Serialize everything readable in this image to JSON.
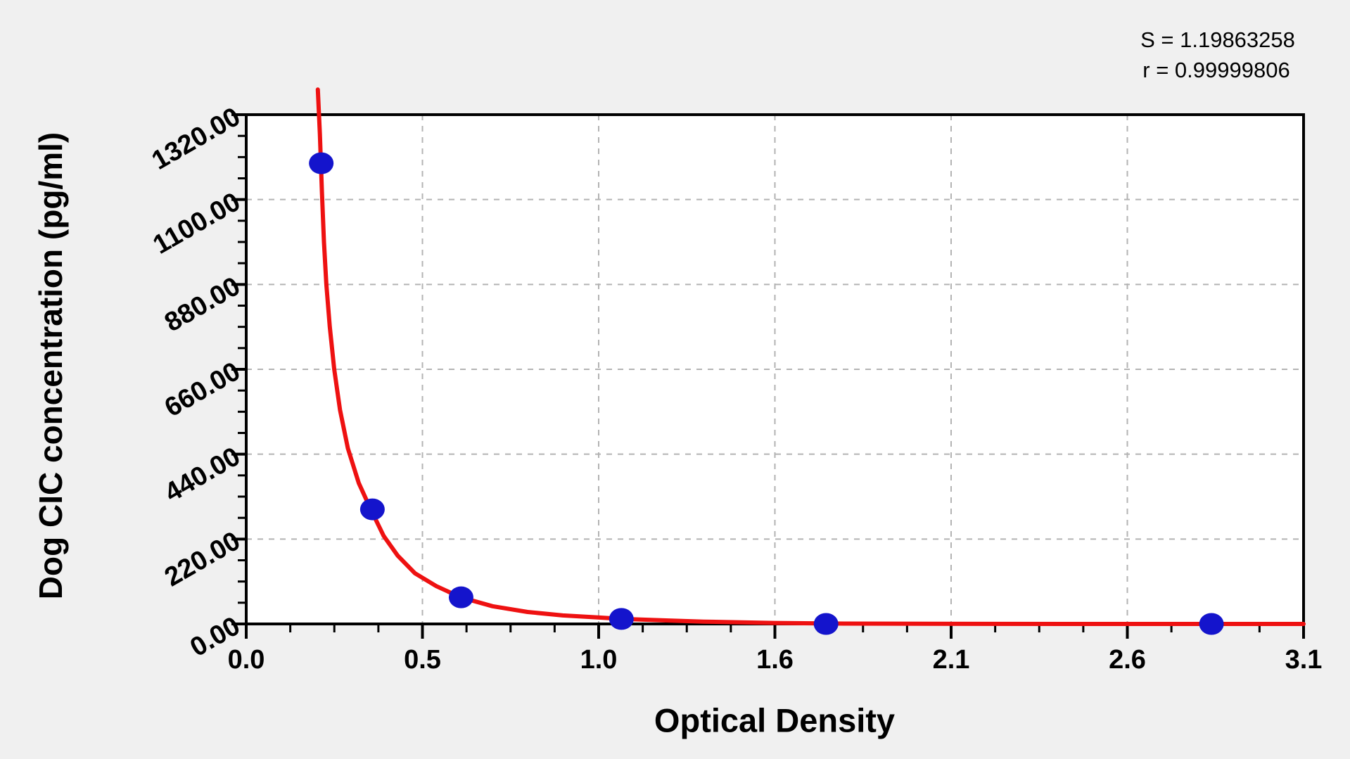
{
  "stats": {
    "s_line": "S = 1.19863258",
    "r_line": "r = 0.99999806"
  },
  "chart_data": {
    "type": "scatter",
    "title": "",
    "xlabel": "Optical Density",
    "ylabel": "Dog CIC concentration (pg/ml)",
    "xlim": [
      0,
      3.1
    ],
    "ylim": [
      0,
      1320
    ],
    "x_tick_labels": [
      "0.0",
      "0.5",
      "1.0",
      "1.6",
      "2.1",
      "2.6",
      "3.1"
    ],
    "y_tick_labels": [
      "0.00",
      "220.00",
      "440.00",
      "660.00",
      "880.00",
      "1100.00",
      "1320.00"
    ],
    "minor_ticks_per_major": 4,
    "grid": "dashed-at-major-ticks",
    "legend": "none",
    "fit_stats": {
      "S": 1.19863258,
      "r": 0.99999806
    },
    "points": [
      {
        "od": 0.22,
        "conc": 1194
      },
      {
        "od": 0.37,
        "conc": 297
      },
      {
        "od": 0.63,
        "conc": 69
      },
      {
        "od": 1.1,
        "conc": 13
      },
      {
        "od": 1.7,
        "conc": 0
      },
      {
        "od": 2.83,
        "conc": 0
      }
    ],
    "curve": [
      [
        0.21,
        1385
      ],
      [
        0.216,
        1270
      ],
      [
        0.222,
        1120
      ],
      [
        0.228,
        990
      ],
      [
        0.235,
        880
      ],
      [
        0.245,
        770
      ],
      [
        0.258,
        660
      ],
      [
        0.275,
        555
      ],
      [
        0.298,
        455
      ],
      [
        0.33,
        365
      ],
      [
        0.365,
        297
      ],
      [
        0.403,
        228
      ],
      [
        0.444,
        177
      ],
      [
        0.495,
        131
      ],
      [
        0.557,
        98
      ],
      [
        0.629,
        69
      ],
      [
        0.722,
        46
      ],
      [
        0.825,
        31
      ],
      [
        0.928,
        22
      ],
      [
        1.031,
        17
      ],
      [
        1.103,
        13
      ],
      [
        1.238,
        9
      ],
      [
        1.341,
        6
      ],
      [
        1.547,
        2.5
      ],
      [
        1.753,
        1
      ],
      [
        2.0,
        0.5
      ],
      [
        2.4,
        0
      ],
      [
        2.834,
        0
      ],
      [
        3.1,
        0
      ]
    ],
    "colors": {
      "curve": "#ee1111",
      "points": "#1414cc",
      "grid": "#b3b3b3",
      "frame": "#000000",
      "plot_bg": "#ffffff",
      "page_bg": "#f0f0f0"
    }
  }
}
